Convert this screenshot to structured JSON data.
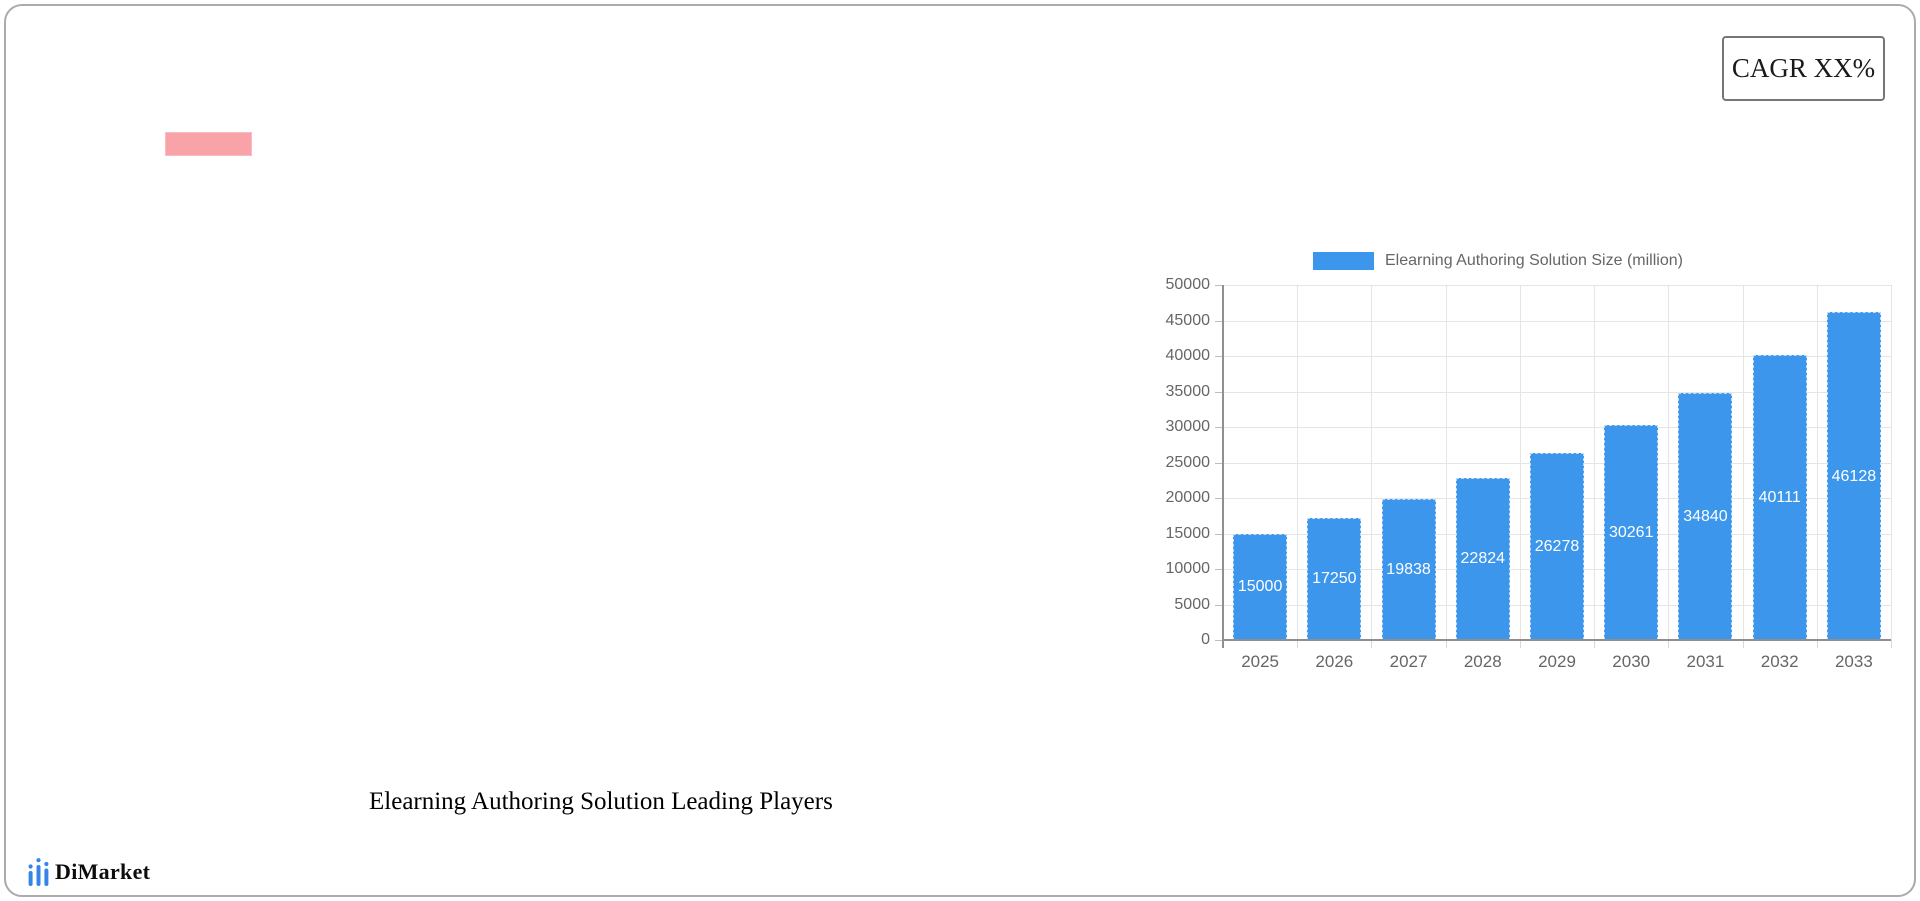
{
  "cagr": {
    "label": "CAGR XX%"
  },
  "footer": {
    "title": "Elearning Authoring Solution Leading Players"
  },
  "brand": {
    "name": "DiMarket",
    "icon": "bar-chart-logo-icon"
  },
  "colors": {
    "bar": "#3B96EC",
    "bar_border": "#BFDBF8",
    "pink": "#F9A2A7",
    "grid": "#E5E5E5",
    "axis": "#8F8F8F",
    "tick_label": "#666666",
    "legend_text": "#666666",
    "value_label": "#FFFFFF",
    "brand_blue": "#3585E8"
  },
  "chart_data": {
    "type": "bar",
    "legend": "Elearning Authoring Solution Size (million)",
    "legend_position": "top",
    "categories": [
      "2025",
      "2026",
      "2027",
      "2028",
      "2029",
      "2030",
      "2031",
      "2032",
      "2033"
    ],
    "values": [
      15000,
      17250,
      19838,
      22824,
      26278,
      30261,
      34840,
      40111,
      46128
    ],
    "title": "",
    "xlabel": "",
    "ylabel": "",
    "ylim": [
      0,
      50000
    ],
    "ytick_step": 5000,
    "grid": true,
    "value_labels": "centered-in-bar"
  }
}
